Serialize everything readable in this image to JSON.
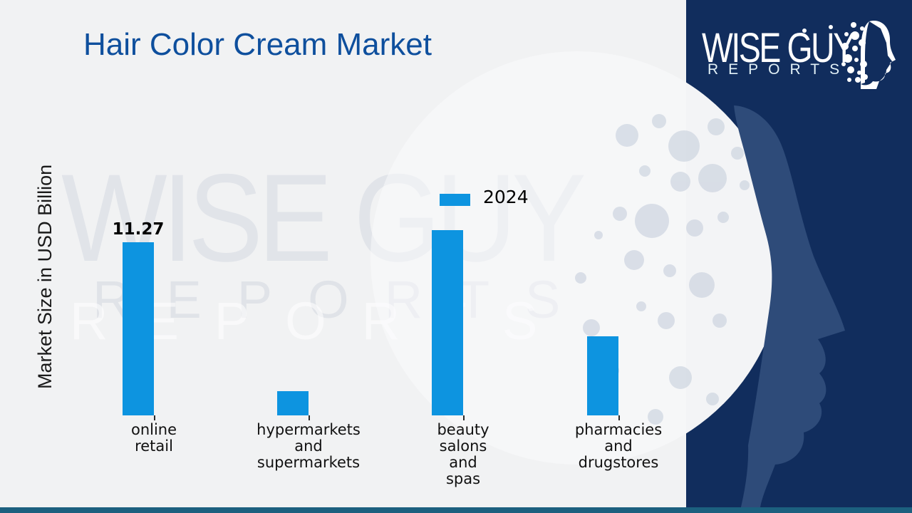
{
  "page": {
    "title": "Hair Color Cream Market"
  },
  "logo": {
    "brand": "WISE GUY",
    "sub": "REPORTS"
  },
  "watermark": {
    "brand": "WISE GUY",
    "sub": "REPORTS"
  },
  "chart_data": {
    "type": "bar",
    "title": "Hair Color Cream Market",
    "xlabel": "",
    "ylabel": "Market Size in USD Billion",
    "categories": [
      "online retail",
      "hypermarkets and supermarkets",
      "beauty salons and spas",
      "pharmacies and drugstores"
    ],
    "category_lines": [
      [
        "online",
        "retail"
      ],
      [
        "hypermarkets",
        "and",
        "supermarkets"
      ],
      [
        "beauty",
        "salons",
        "and",
        "spas"
      ],
      [
        "pharmacies",
        "and",
        "drugstores"
      ]
    ],
    "series": [
      {
        "name": "2024",
        "values": [
          11.27,
          1.58,
          12.06,
          5.15
        ]
      }
    ],
    "bar_value_labels": [
      "11.27",
      "",
      "",
      ""
    ],
    "legend": {
      "label": "2024",
      "position": "upper-center"
    },
    "axes": {
      "ylim": [
        0,
        13
      ],
      "gridlines": false,
      "y_tick_labels_visible": false
    },
    "unit": "USD Billion",
    "year": "2024"
  },
  "colors": {
    "background": "#f1f2f3",
    "title": "#0e4f9d",
    "bar": "#0d94e0",
    "navy_panel": "#112d5d",
    "footer_teal": "#1c607f",
    "watermark_gray": "#d8dce4",
    "face_slate": "#2e4b79",
    "circle_light": "#f3f4f6"
  }
}
